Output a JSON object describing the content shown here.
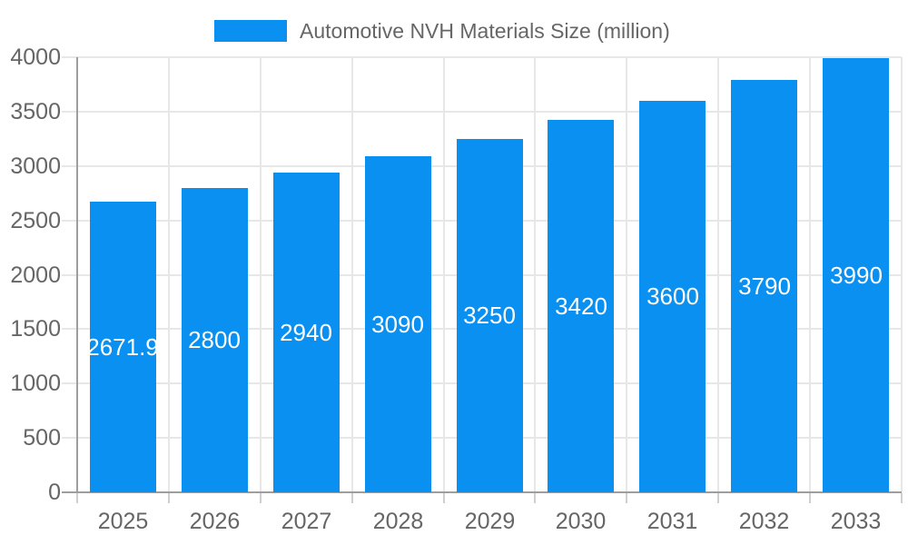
{
  "chart_data": {
    "type": "bar",
    "title": "Automotive NVH Materials Size (million)",
    "legend": {
      "position": "top",
      "entries": [
        "Automotive NVH Materials Size (million)"
      ]
    },
    "categories": [
      "2025",
      "2026",
      "2027",
      "2028",
      "2029",
      "2030",
      "2031",
      "2032",
      "2033"
    ],
    "values": [
      2671.9,
      2800,
      2940,
      3090,
      3250,
      3420,
      3600,
      3790,
      3990
    ],
    "value_labels": [
      "2671.9",
      "2800",
      "2940",
      "3090",
      "3250",
      "3420",
      "3600",
      "3790",
      "3990"
    ],
    "xlabel": "",
    "ylabel": "",
    "ylim": [
      0,
      4000
    ],
    "ytick_step": 500,
    "yticks": [
      0,
      500,
      1000,
      1500,
      2000,
      2500,
      3000,
      3500,
      4000
    ],
    "grid": true,
    "colors": {
      "bar": "#0a90f0",
      "grid": "#e7e7e7",
      "axis": "#9e9e9e",
      "tick_mark": "#cfcfcf",
      "label_text": "#666666",
      "value_text": "#ffffff",
      "background": "#ffffff"
    }
  }
}
